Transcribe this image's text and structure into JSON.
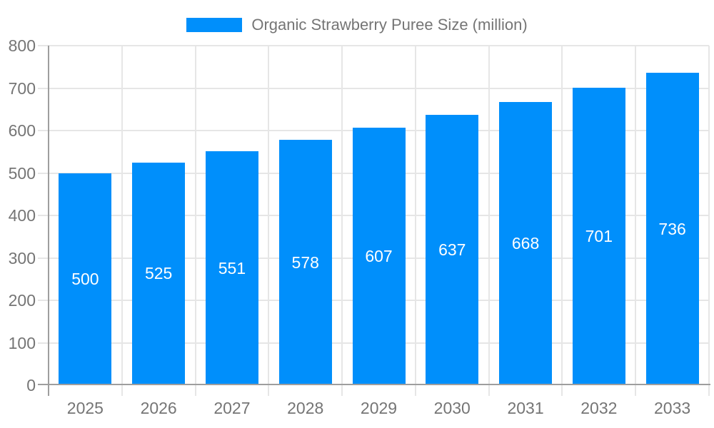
{
  "legend": {
    "items": [
      {
        "label": "Organic Strawberry Puree Size (million)",
        "color": "#008ffb"
      }
    ]
  },
  "chart_data": {
    "type": "bar",
    "title": "Organic Strawberry Puree Size (million)",
    "categories": [
      "2025",
      "2026",
      "2027",
      "2028",
      "2029",
      "2030",
      "2031",
      "2032",
      "2033"
    ],
    "values": [
      500,
      525,
      551,
      578,
      607,
      637,
      668,
      701,
      736
    ],
    "series": [
      {
        "name": "Organic Strawberry Puree Size (million)",
        "values": [
          500,
          525,
          551,
          578,
          607,
          637,
          668,
          701,
          736
        ]
      }
    ],
    "xlabel": "",
    "ylabel": "",
    "ylim": [
      0,
      800
    ],
    "ytick_step": 100,
    "grid": true,
    "legend_position": "top",
    "bar_labels_shown": true,
    "colors": {
      "bar": "#008ffb",
      "grid": "#e6e6e6",
      "axis_line": "#9e9e9e",
      "axis_text": "#757575",
      "bar_label": "#ffffff",
      "background": "#ffffff"
    }
  }
}
